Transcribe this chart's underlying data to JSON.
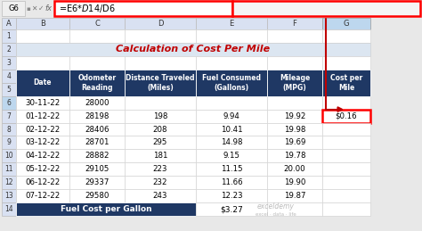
{
  "title": "Calculation of Cost Per Mile",
  "formula_bar_cell": "G6",
  "formula_bar_formula": "=E6*$D$14/D6",
  "col_headers": [
    "Date",
    "Odometer\nReading",
    "Distance Traveled\n(Miles)",
    "Fuel Consumed\n(Gallons)",
    "Mileage\n(MPG)",
    "Cost per\nMile"
  ],
  "rows": [
    [
      "30-11-22",
      "28000",
      "",
      "",
      "",
      ""
    ],
    [
      "01-12-22",
      "28198",
      "198",
      "9.94",
      "19.92",
      "$0.16"
    ],
    [
      "02-12-22",
      "28406",
      "208",
      "10.41",
      "19.98",
      ""
    ],
    [
      "03-12-22",
      "28701",
      "295",
      "14.98",
      "19.69",
      ""
    ],
    [
      "04-12-22",
      "28882",
      "181",
      "9.15",
      "19.78",
      ""
    ],
    [
      "05-12-22",
      "29105",
      "223",
      "11.15",
      "20.00",
      ""
    ],
    [
      "06-12-22",
      "29337",
      "232",
      "11.66",
      "19.90",
      ""
    ],
    [
      "07-12-22",
      "29580",
      "243",
      "12.23",
      "19.87",
      ""
    ]
  ],
  "footer_label": "Fuel Cost per Gallon",
  "footer_value": "$3.27",
  "header_bg": "#1F3864",
  "header_fg": "#FFFFFF",
  "title_fg": "#C00000",
  "title_bg": "#DCE6F1",
  "grid_color": "#AAAAAA",
  "highlight_cell_border": "#FF0000",
  "formula_box_bg": "#FFFFFF",
  "formula_box_border": "#FF0000",
  "arrow_color": "#C00000",
  "footer_label_bg": "#1F3864",
  "footer_label_fg": "#FFFFFF",
  "col_ref_bg": "#D9E1F2",
  "col_ref_selected_bg": "#BDD7EE",
  "col_ref_fg": "#333333",
  "outer_bg": "#E8E8E8",
  "fb_bg": "#F5F5F5",
  "cell_border": "#D0D0D0",
  "watermark": "exceldemy",
  "watermark2": "excel · data · life"
}
